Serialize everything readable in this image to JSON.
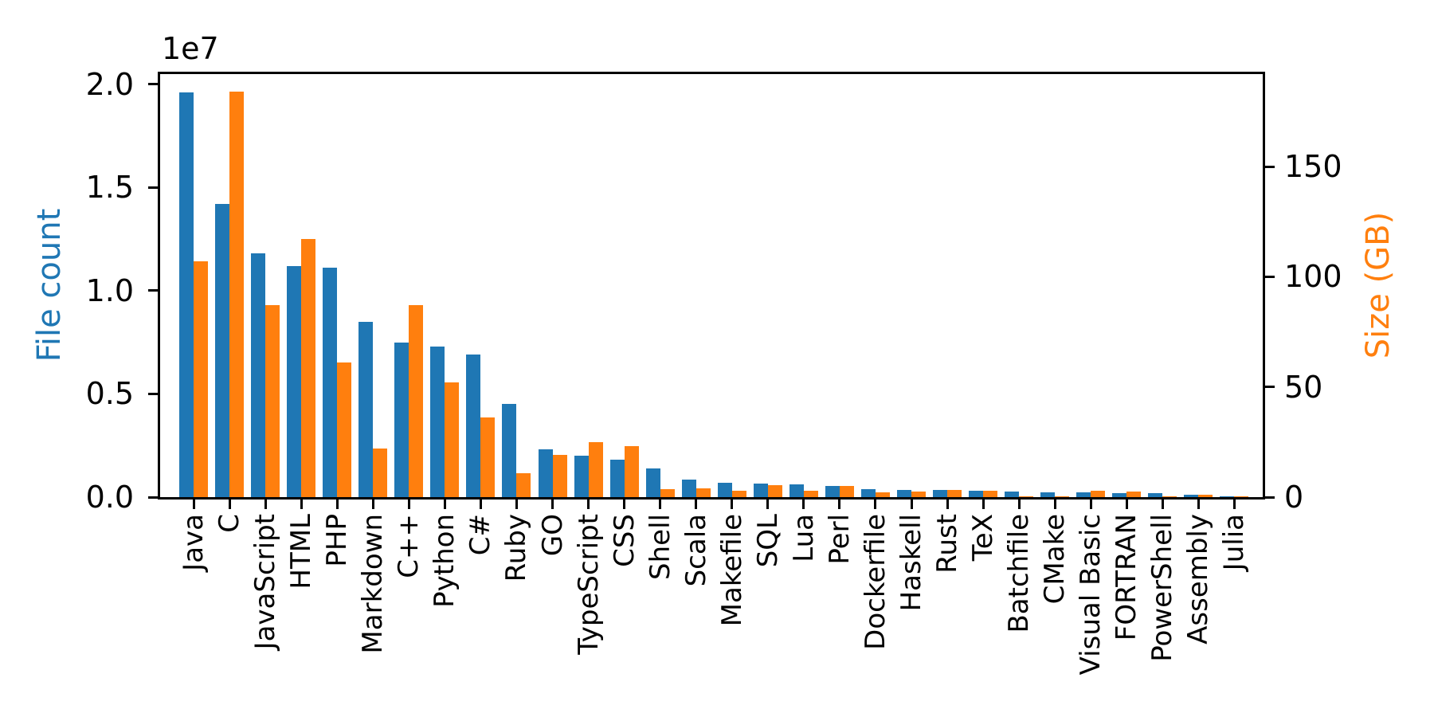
{
  "chart_data": {
    "type": "bar",
    "title": "",
    "description": "Dual-axis grouped bar chart of file count (blue, left axis, 1e7 scale) and dataset size in GB (orange, right axis) per programming language",
    "categories": [
      "Java",
      "C",
      "JavaScript",
      "HTML",
      "PHP",
      "Markdown",
      "C++",
      "Python",
      "C#",
      "Ruby",
      "GO",
      "TypeScript",
      "CSS",
      "Shell",
      "Scala",
      "Makefile",
      "SQL",
      "Lua",
      "Perl",
      "Dockerfile",
      "Haskell",
      "Rust",
      "TeX",
      "Batchfile",
      "CMake",
      "Visual Basic",
      "FORTRAN",
      "PowerShell",
      "Assembly",
      "Julia"
    ],
    "series": [
      {
        "name": "File count",
        "axis": "left",
        "color": "#1f77b4",
        "values": [
          19600000,
          14200000,
          11800000,
          11200000,
          11100000,
          8500000,
          7500000,
          7300000,
          6900000,
          4500000,
          2300000,
          2000000,
          1800000,
          1400000,
          850000,
          700000,
          650000,
          600000,
          550000,
          400000,
          350000,
          340000,
          300000,
          270000,
          240000,
          230000,
          190000,
          190000,
          125000,
          50000
        ]
      },
      {
        "name": "Size (GB)",
        "axis": "right",
        "color": "#ff7f0e",
        "values": [
          107,
          184,
          87,
          117,
          61,
          22,
          87,
          52,
          36,
          11,
          19,
          25,
          23,
          3.5,
          4,
          3,
          5.5,
          3,
          5,
          2,
          2.5,
          3.2,
          3,
          0.5,
          0.4,
          3,
          2.6,
          0.5,
          1,
          0.3
        ]
      }
    ],
    "left_axis": {
      "label": "File count",
      "color": "#1f77b4",
      "offset_label": "1e7",
      "tick_labels": [
        "0.0",
        "0.5",
        "1.0",
        "1.5",
        "2.0"
      ],
      "tick_values": [
        0,
        5000000,
        10000000,
        15000000,
        20000000
      ],
      "max": 20500000
    },
    "right_axis": {
      "label": "Size (GB)",
      "color": "#ff7f0e",
      "tick_labels": [
        "0",
        "50",
        "100",
        "150"
      ],
      "tick_values": [
        0,
        50,
        100,
        150
      ],
      "max": 192
    },
    "x_axis": {
      "tick_label_rotation": 90
    },
    "grid": false,
    "legend": "none",
    "background": "#ffffff",
    "spine_color": "#000000"
  }
}
